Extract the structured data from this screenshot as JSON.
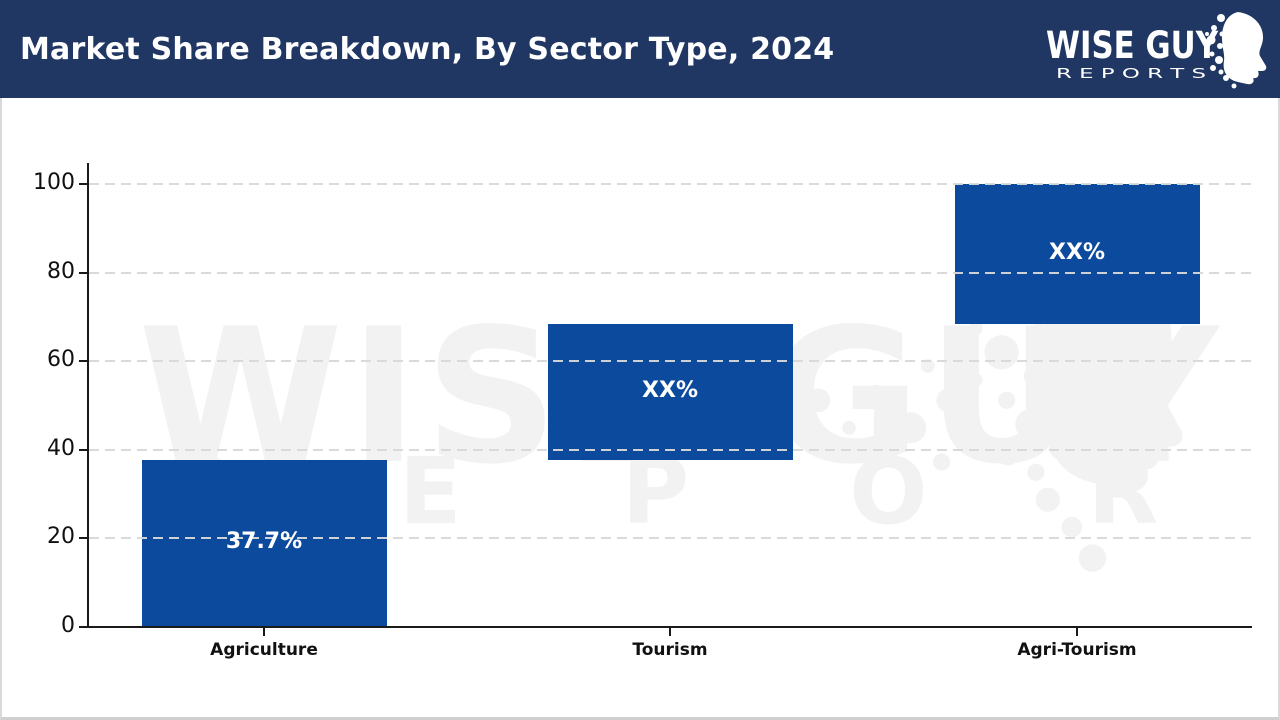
{
  "header": {
    "title": "Market Share Breakdown, By Sector Type, 2024",
    "logo_line1": "WISE GUY",
    "logo_line2": "R E P O R T S"
  },
  "watermark": {
    "line1": "WISE GUY",
    "line2": "R E P O R T S"
  },
  "colors": {
    "header_bg": "#213763",
    "bar_fill": "#0c4a9e",
    "axis": "#1a1a1a",
    "gridline": "#d8d8d8",
    "watermark": "#f2f2f2",
    "bar_label_text": "#ffffff",
    "title_text": "#ffffff"
  },
  "chart_data": {
    "type": "bar",
    "subtype": "waterfall",
    "title": "Market Share Breakdown, By Sector Type, 2024",
    "categories": [
      "Agriculture",
      "Tourism",
      "Agri-Tourism"
    ],
    "segments": [
      {
        "category": "Agriculture",
        "start": 0,
        "end": 37.7,
        "label": "37.7%"
      },
      {
        "category": "Tourism",
        "start": 37.7,
        "end": 68.4,
        "label": "XX%"
      },
      {
        "category": "Agri-Tourism",
        "start": 68.4,
        "end": 100,
        "label": "XX%"
      }
    ],
    "xlabel": "",
    "ylabel": "",
    "ylim": [
      0,
      100
    ],
    "yticks": [
      0,
      20,
      40,
      60,
      80,
      100
    ],
    "grid": "horizontal-dashed-on-top",
    "legend": "none",
    "bar_color": "#0c4a9e"
  }
}
